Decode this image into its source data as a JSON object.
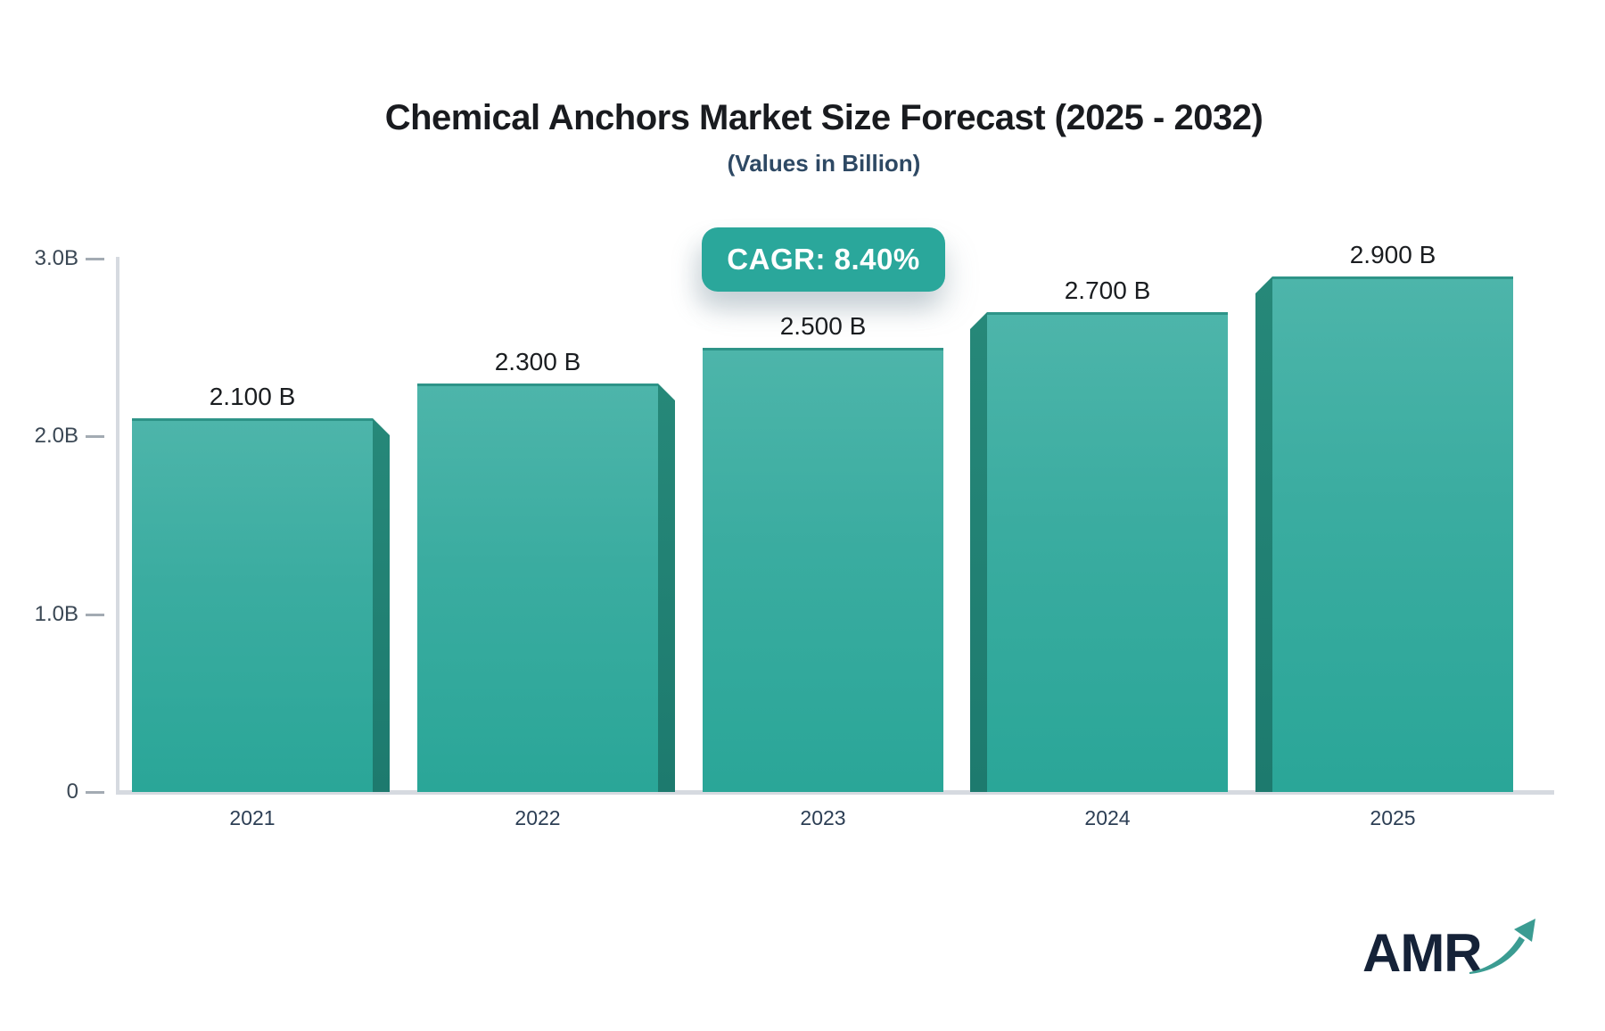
{
  "title": "Chemical Anchors Market Size Forecast (2025 - 2032)",
  "subtitle": "(Values in Billion)",
  "cagr_badge_label": "CAGR: 8.40%",
  "logo": {
    "text": "AMR",
    "icon": "growth-arrow-icon"
  },
  "colors": {
    "accent_teal": "#2aa79b",
    "bar_gradient_top": "#4db5aa",
    "bar_gradient_bottom": "#2aa698",
    "bar_side_dark": "#1f7e72",
    "axis_gray": "#d6dae0",
    "tick_gray": "#a3abb3",
    "title_text": "#191b1f",
    "subtitle_text": "#2e4964",
    "x_label_text": "#2c3e54",
    "y_label_text": "#3a4754",
    "logo_navy": "#152238"
  },
  "chart_data": {
    "type": "bar",
    "title": "Chemical Anchors Market Size Forecast (2025 - 2032)",
    "subtitle": "(Values in Billion)",
    "unit": "Billion",
    "categories": [
      "2021",
      "2022",
      "2023",
      "2024",
      "2025"
    ],
    "values": [
      2.1,
      2.3,
      2.5,
      2.7,
      2.9
    ],
    "bar_labels": [
      "2.100 B",
      "2.300 B",
      "2.500 B",
      "2.700 B",
      "2.900 B"
    ],
    "cagr_annotation": "CAGR: 8.40%",
    "yticks": [
      {
        "value": 3.0,
        "label": "3.0B"
      },
      {
        "value": 2.0,
        "label": "2.0B"
      },
      {
        "value": 1.0,
        "label": "1.0B"
      },
      {
        "value": 0.0,
        "label": "0"
      }
    ],
    "ylim": [
      0,
      3.0
    ],
    "grid": false,
    "legend": false,
    "bar_3d_side": [
      "right",
      "right",
      "none",
      "left",
      "left"
    ]
  }
}
